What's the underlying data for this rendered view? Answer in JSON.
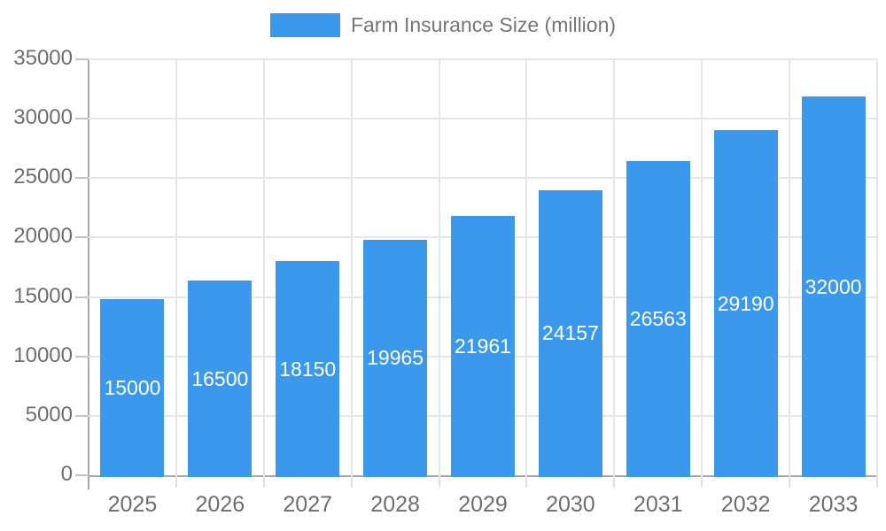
{
  "legend": {
    "label": "Farm Insurance Size (million)",
    "swatch_color": "#3B99ED"
  },
  "chart_data": {
    "type": "bar",
    "title": "Farm Insurance Size (million)",
    "categories": [
      "2025",
      "2026",
      "2027",
      "2028",
      "2029",
      "2030",
      "2031",
      "2032",
      "2033"
    ],
    "series": [
      {
        "name": "Farm Insurance Size (million)",
        "values": [
          15000,
          16500,
          18150,
          19965,
          21961,
          24157,
          26563,
          29190,
          32000
        ]
      }
    ],
    "bar_labels": [
      "15000",
      "16500",
      "18150",
      "19965",
      "21961",
      "24157",
      "26563",
      "29190",
      "32000"
    ],
    "xlabel": "",
    "ylabel": "",
    "ylim": [
      0,
      35000
    ],
    "ytick_step": 5000,
    "ytick_labels": [
      "0",
      "5000",
      "10000",
      "15000",
      "20000",
      "25000",
      "30000",
      "35000"
    ],
    "grid": true,
    "legend_position": "top-center",
    "colors": {
      "bar": "#3B99ED",
      "bar_label": "#ffffff",
      "grid": "#e6e6e6",
      "axis": "#a9a9a9",
      "tick_label": "#6e6e6e",
      "legend_text": "#757575",
      "background": "#ffffff"
    }
  }
}
